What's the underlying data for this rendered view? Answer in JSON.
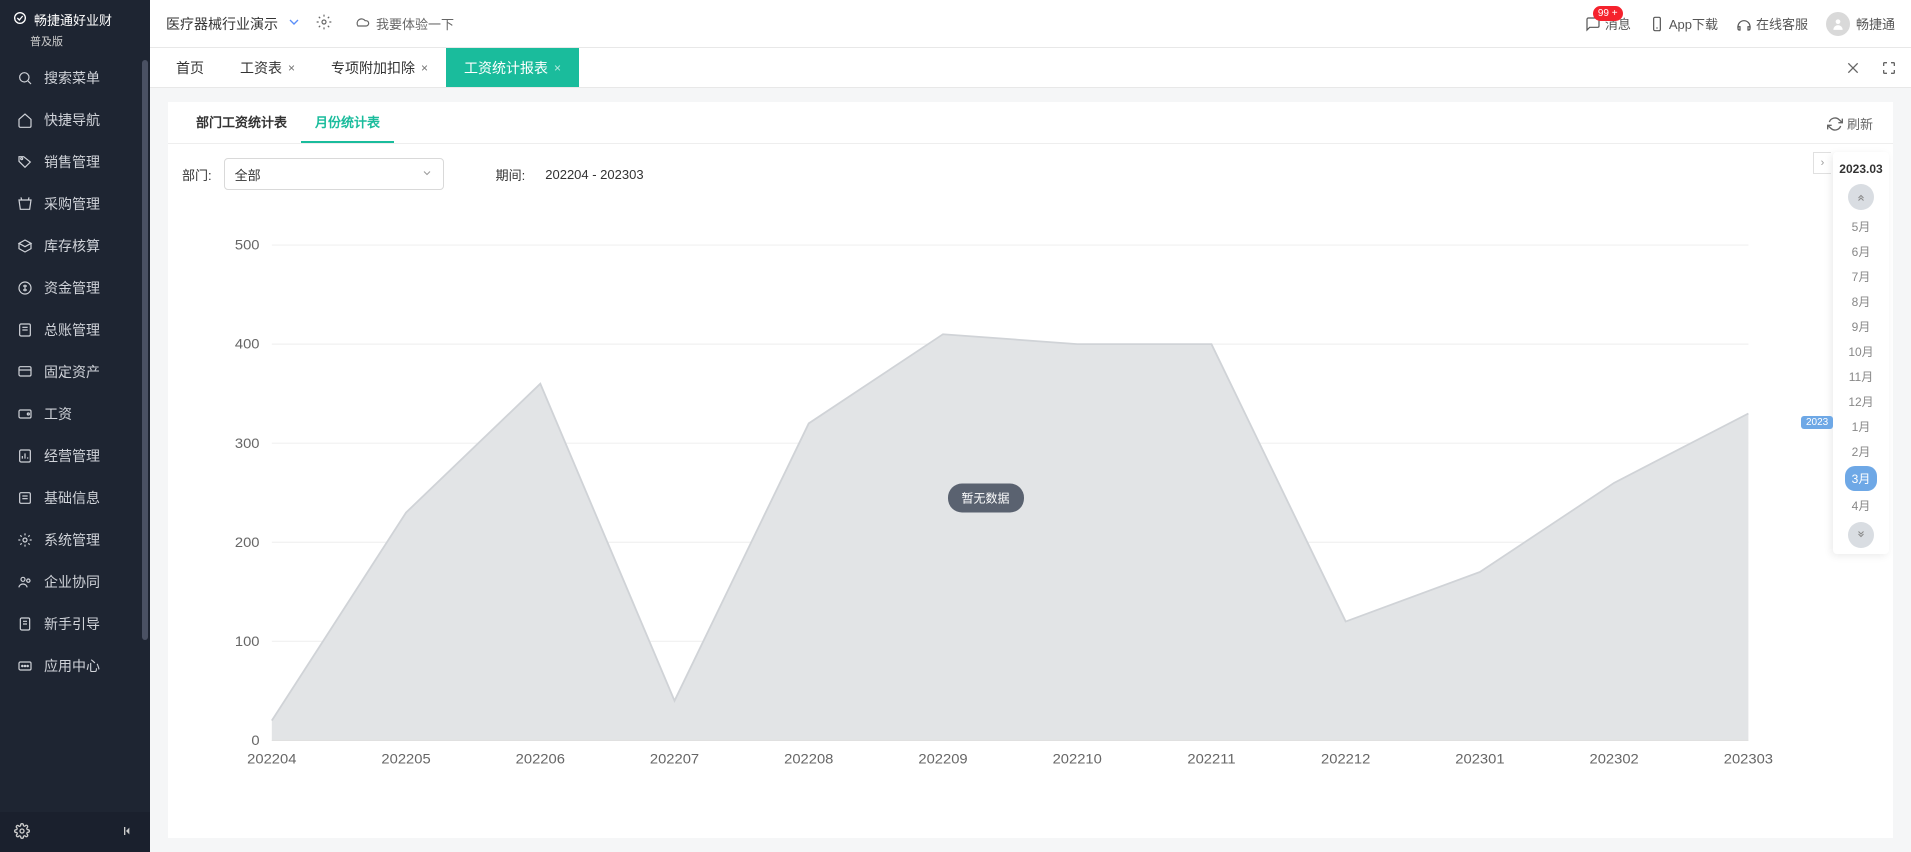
{
  "brand": {
    "name": "畅捷通好业财",
    "edition": "普及版"
  },
  "sidebar": {
    "items": [
      {
        "label": "搜索菜单",
        "icon": "search"
      },
      {
        "label": "快捷导航",
        "icon": "home"
      },
      {
        "label": "销售管理",
        "icon": "tag"
      },
      {
        "label": "采购管理",
        "icon": "bag"
      },
      {
        "label": "库存核算",
        "icon": "box"
      },
      {
        "label": "资金管理",
        "icon": "money"
      },
      {
        "label": "总账管理",
        "icon": "ledger"
      },
      {
        "label": "固定资产",
        "icon": "asset"
      },
      {
        "label": "工资",
        "icon": "wallet"
      },
      {
        "label": "经营管理",
        "icon": "report"
      },
      {
        "label": "基础信息",
        "icon": "info"
      },
      {
        "label": "系统管理",
        "icon": "gear"
      },
      {
        "label": "企业协同",
        "icon": "team"
      },
      {
        "label": "新手引导",
        "icon": "guide"
      },
      {
        "label": "应用中心",
        "icon": "apps"
      }
    ]
  },
  "topbar": {
    "org": "医疗器械行业演示",
    "trial": "我要体验一下",
    "message_label": "消息",
    "message_badge": "99 +",
    "app_download": "App下载",
    "online_cs": "在线客服",
    "username": "畅捷通"
  },
  "tabs": {
    "items": [
      {
        "label": "首页",
        "closable": false
      },
      {
        "label": "工资表",
        "closable": true
      },
      {
        "label": "专项附加扣除",
        "closable": true
      },
      {
        "label": "工资统计报表",
        "closable": true,
        "active": true
      }
    ]
  },
  "subtabs": {
    "items": [
      {
        "label": "部门工资统计表",
        "active": false
      },
      {
        "label": "月份统计表",
        "active": true
      }
    ],
    "refresh": "刷新"
  },
  "filters": {
    "dept_label": "部门:",
    "dept_value": "全部",
    "period_label": "期间:",
    "period_value": "202204 - 202303"
  },
  "chart": {
    "type": "area",
    "no_data_label": "暂无数据",
    "ylim": [
      0,
      500
    ],
    "ytick_step": 100,
    "yticks": [
      "0",
      "100",
      "200",
      "300",
      "400",
      "500"
    ],
    "categories": [
      "202204",
      "202205",
      "202206",
      "202207",
      "202208",
      "202209",
      "202210",
      "202211",
      "202212",
      "202301",
      "202302",
      "202303"
    ],
    "values": [
      20,
      230,
      360,
      40,
      320,
      410,
      400,
      400,
      120,
      170,
      260,
      330
    ],
    "area_color": "#e2e4e6",
    "line_color": "#d0d3d7",
    "grid_color": "#f0f0f0",
    "axis_color": "#e0e0e0",
    "text_color": "#666666",
    "background_color": "#ffffff",
    "label_fontsize": 12
  },
  "month_rail": {
    "head": "2023.03",
    "year_tag": "2023",
    "items": [
      "5月",
      "6月",
      "7月",
      "8月",
      "9月",
      "10月",
      "11月",
      "12月",
      "1月",
      "2月",
      "3月",
      "4月"
    ],
    "active_index": 10,
    "year_break_index": 8
  }
}
